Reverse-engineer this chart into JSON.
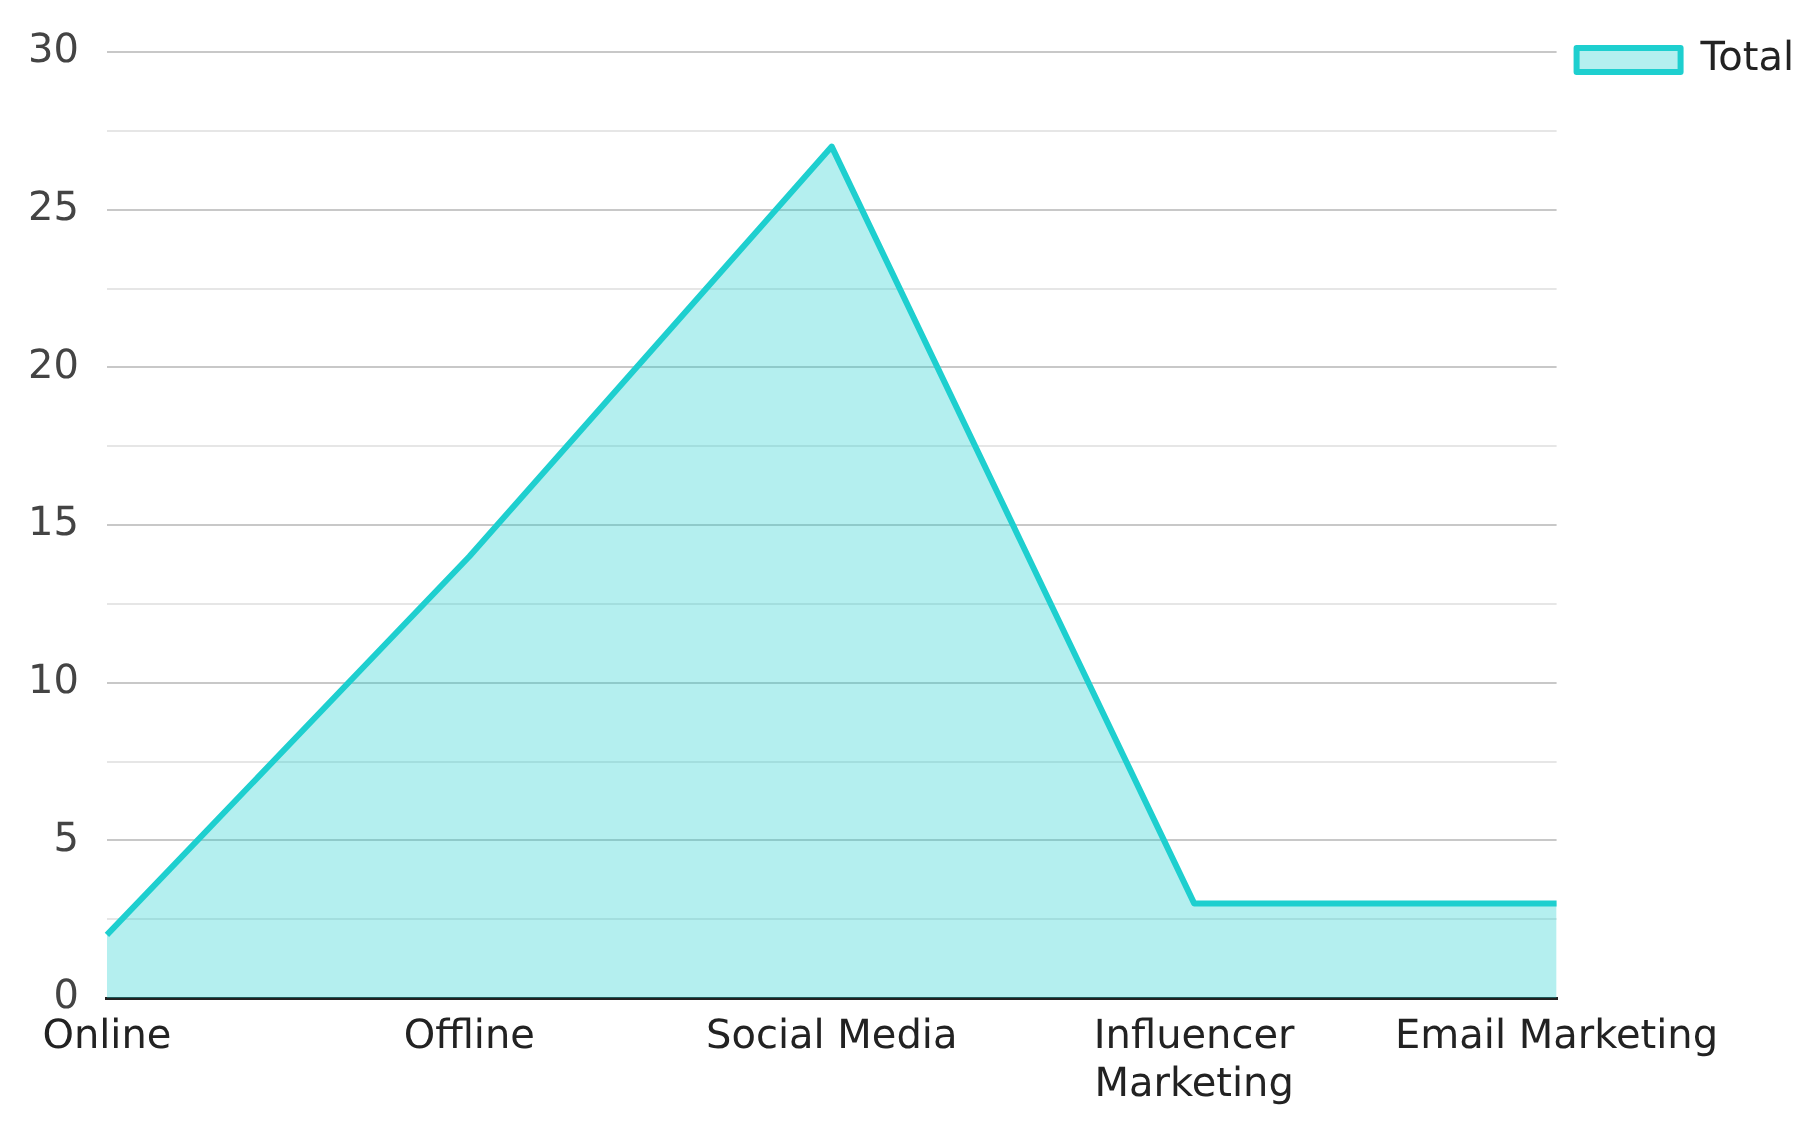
{
  "chart_data": {
    "type": "area",
    "categories": [
      "Online",
      "Offline",
      "Social Media",
      "Influencer Marketing",
      "Email Marketing"
    ],
    "series": [
      {
        "name": "Total",
        "color": "#1ecfcf",
        "values": [
          2,
          14,
          27,
          3,
          3
        ]
      }
    ],
    "ylim": [
      0,
      30
    ],
    "yticks": [
      0,
      {
        "value": 2.5,
        "label": null
      },
      5,
      {
        "value": 7.5,
        "label": null
      },
      10,
      {
        "value": 12.5,
        "label": null
      },
      15,
      {
        "value": 17.5,
        "label": null
      },
      20,
      {
        "value": 22.5,
        "label": null
      },
      25,
      {
        "value": 27.5,
        "label": null
      },
      30
    ],
    "grid": "y",
    "legend": "top right"
  }
}
